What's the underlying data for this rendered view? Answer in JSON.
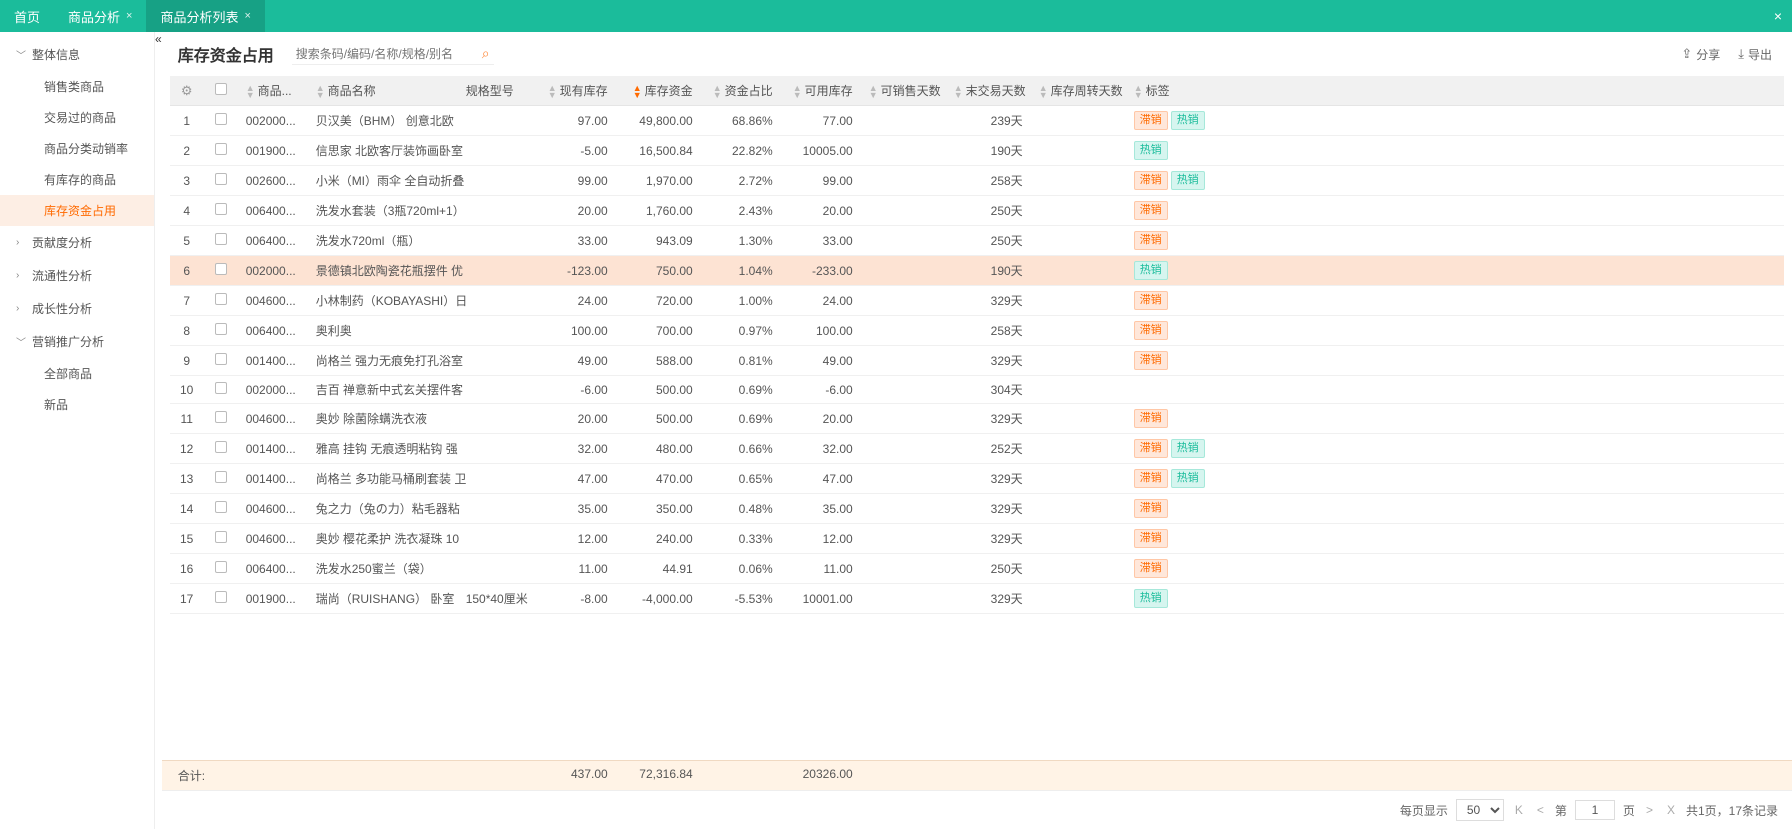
{
  "tabs": [
    {
      "label": "首页",
      "closable": false,
      "active": false
    },
    {
      "label": "商品分析",
      "closable": true,
      "active": false
    },
    {
      "label": "商品分析列表",
      "closable": true,
      "active": true
    }
  ],
  "sidebar": {
    "groups": [
      {
        "label": "整体信息",
        "expanded": true,
        "items": [
          {
            "label": "销售类商品"
          },
          {
            "label": "交易过的商品"
          },
          {
            "label": "商品分类动销率"
          },
          {
            "label": "有库存的商品"
          },
          {
            "label": "库存资金占用",
            "active": true
          }
        ]
      },
      {
        "label": "贡献度分析",
        "expanded": false,
        "items": []
      },
      {
        "label": "流通性分析",
        "expanded": false,
        "items": []
      },
      {
        "label": "成长性分析",
        "expanded": false,
        "items": []
      },
      {
        "label": "营销推广分析",
        "expanded": true,
        "items": [
          {
            "label": "全部商品"
          },
          {
            "label": "新品"
          }
        ]
      }
    ]
  },
  "page": {
    "title": "库存资金占用",
    "search_placeholder": "搜索条码/编码/名称/规格/别名",
    "share_label": "分享",
    "export_label": "导出"
  },
  "columns": [
    {
      "key": "gear",
      "label": "",
      "w": 34,
      "align": "center"
    },
    {
      "key": "chk",
      "label": "",
      "w": 34,
      "align": "center"
    },
    {
      "key": "code",
      "label": "商品...",
      "w": 70,
      "sort": true
    },
    {
      "key": "name",
      "label": "商品名称",
      "w": 150,
      "sort": true
    },
    {
      "key": "spec",
      "label": "规格型号",
      "w": 78
    },
    {
      "key": "stock",
      "label": "现有库存",
      "w": 80,
      "align": "num",
      "sort": true
    },
    {
      "key": "fund",
      "label": "库存资金",
      "w": 85,
      "align": "num",
      "sort": true,
      "sorted": "desc"
    },
    {
      "key": "ratio",
      "label": "资金占比",
      "w": 80,
      "align": "num",
      "sort": true
    },
    {
      "key": "avail",
      "label": "可用库存",
      "w": 80,
      "align": "num",
      "sort": true
    },
    {
      "key": "saledays",
      "label": "可销售天数",
      "w": 85,
      "align": "num",
      "sort": true
    },
    {
      "key": "lastdeal",
      "label": "末交易天数",
      "w": 85,
      "align": "num",
      "sort": true
    },
    {
      "key": "turndays",
      "label": "库存周转天数",
      "w": 95,
      "align": "num",
      "sort": true
    },
    {
      "key": "tags",
      "label": "标签",
      "w": 110,
      "sort": true
    }
  ],
  "rows": [
    {
      "idx": 1,
      "code": "002000...",
      "name": "贝汉美（BHM） 创意北欧",
      "spec": "",
      "stock": "97.00",
      "fund": "49,800.00",
      "ratio": "68.86%",
      "avail": "77.00",
      "saledays": "",
      "lastdeal": "239天",
      "turndays": "",
      "tags": [
        "滞销",
        "热销"
      ]
    },
    {
      "idx": 2,
      "code": "001900...",
      "name": "信思家 北欧客厅装饰画卧室",
      "spec": "",
      "stock": "-5.00",
      "fund": "16,500.84",
      "ratio": "22.82%",
      "avail": "10005.00",
      "saledays": "",
      "lastdeal": "190天",
      "turndays": "",
      "tags": [
        "热销"
      ]
    },
    {
      "idx": 3,
      "code": "002600...",
      "name": "小米（MI）雨伞 全自动折叠",
      "spec": "",
      "stock": "99.00",
      "fund": "1,970.00",
      "ratio": "2.72%",
      "avail": "99.00",
      "saledays": "",
      "lastdeal": "258天",
      "turndays": "",
      "tags": [
        "滞销",
        "热销"
      ]
    },
    {
      "idx": 4,
      "code": "006400...",
      "name": "洗发水套装（3瓶720ml+1）",
      "spec": "",
      "stock": "20.00",
      "fund": "1,760.00",
      "ratio": "2.43%",
      "avail": "20.00",
      "saledays": "",
      "lastdeal": "250天",
      "turndays": "",
      "tags": [
        "滞销"
      ]
    },
    {
      "idx": 5,
      "code": "006400...",
      "name": "洗发水720ml（瓶）",
      "spec": "",
      "stock": "33.00",
      "fund": "943.09",
      "ratio": "1.30%",
      "avail": "33.00",
      "saledays": "",
      "lastdeal": "250天",
      "turndays": "",
      "tags": [
        "滞销"
      ]
    },
    {
      "idx": 6,
      "code": "002000...",
      "name": "景德镇北欧陶瓷花瓶摆件 优",
      "spec": "",
      "stock": "-123.00",
      "fund": "750.00",
      "ratio": "1.04%",
      "avail": "-233.00",
      "saledays": "",
      "lastdeal": "190天",
      "turndays": "",
      "tags": [
        "热销"
      ],
      "hl": true
    },
    {
      "idx": 7,
      "code": "004600...",
      "name": "小林制药（KOBAYASHI）日",
      "spec": "",
      "stock": "24.00",
      "fund": "720.00",
      "ratio": "1.00%",
      "avail": "24.00",
      "saledays": "",
      "lastdeal": "329天",
      "turndays": "",
      "tags": [
        "滞销"
      ]
    },
    {
      "idx": 8,
      "code": "006400...",
      "name": "奥利奥",
      "spec": "",
      "stock": "100.00",
      "fund": "700.00",
      "ratio": "0.97%",
      "avail": "100.00",
      "saledays": "",
      "lastdeal": "258天",
      "turndays": "",
      "tags": [
        "滞销"
      ]
    },
    {
      "idx": 9,
      "code": "001400...",
      "name": "尚格兰 强力无痕免打孔浴室",
      "spec": "",
      "stock": "49.00",
      "fund": "588.00",
      "ratio": "0.81%",
      "avail": "49.00",
      "saledays": "",
      "lastdeal": "329天",
      "turndays": "",
      "tags": [
        "滞销"
      ]
    },
    {
      "idx": 10,
      "code": "002000...",
      "name": "吉百 禅意新中式玄关摆件客",
      "spec": "",
      "stock": "-6.00",
      "fund": "500.00",
      "ratio": "0.69%",
      "avail": "-6.00",
      "saledays": "",
      "lastdeal": "304天",
      "turndays": "",
      "tags": []
    },
    {
      "idx": 11,
      "code": "004600...",
      "name": "奥妙 除菌除螨洗衣液",
      "spec": "",
      "stock": "20.00",
      "fund": "500.00",
      "ratio": "0.69%",
      "avail": "20.00",
      "saledays": "",
      "lastdeal": "329天",
      "turndays": "",
      "tags": [
        "滞销"
      ]
    },
    {
      "idx": 12,
      "code": "001400...",
      "name": "雅高 挂钩 无痕透明粘钩 强",
      "spec": "",
      "stock": "32.00",
      "fund": "480.00",
      "ratio": "0.66%",
      "avail": "32.00",
      "saledays": "",
      "lastdeal": "252天",
      "turndays": "",
      "tags": [
        "滞销",
        "热销"
      ]
    },
    {
      "idx": 13,
      "code": "001400...",
      "name": "尚格兰 多功能马桶刷套装 卫",
      "spec": "",
      "stock": "47.00",
      "fund": "470.00",
      "ratio": "0.65%",
      "avail": "47.00",
      "saledays": "",
      "lastdeal": "329天",
      "turndays": "",
      "tags": [
        "滞销",
        "热销"
      ]
    },
    {
      "idx": 14,
      "code": "004600...",
      "name": "兔之力（兔の力）粘毛器粘",
      "spec": "",
      "stock": "35.00",
      "fund": "350.00",
      "ratio": "0.48%",
      "avail": "35.00",
      "saledays": "",
      "lastdeal": "329天",
      "turndays": "",
      "tags": [
        "滞销"
      ]
    },
    {
      "idx": 15,
      "code": "004600...",
      "name": "奥妙 樱花柔护 洗衣凝珠 10",
      "spec": "",
      "stock": "12.00",
      "fund": "240.00",
      "ratio": "0.33%",
      "avail": "12.00",
      "saledays": "",
      "lastdeal": "329天",
      "turndays": "",
      "tags": [
        "滞销"
      ]
    },
    {
      "idx": 16,
      "code": "006400...",
      "name": "洗发水250蜜兰（袋）",
      "spec": "",
      "stock": "11.00",
      "fund": "44.91",
      "ratio": "0.06%",
      "avail": "11.00",
      "saledays": "",
      "lastdeal": "250天",
      "turndays": "",
      "tags": [
        "滞销"
      ]
    },
    {
      "idx": 17,
      "code": "001900...",
      "name": "瑞尚（RUISHANG） 卧室",
      "spec": "150*40厘米",
      "stock": "-8.00",
      "fund": "-4,000.00",
      "ratio": "-5.53%",
      "avail": "10001.00",
      "saledays": "",
      "lastdeal": "329天",
      "turndays": "",
      "tags": [
        "热销"
      ]
    }
  ],
  "summary": {
    "label": "合计:",
    "stock": "437.00",
    "fund": "72,316.84",
    "avail": "20326.00"
  },
  "pager": {
    "perpage_label": "每页显示",
    "perpage_value": "50",
    "first": "K",
    "prev": "<",
    "page_prefix": "第",
    "page_value": "1",
    "page_suffix": "页",
    "next": ">",
    "last": "X",
    "total_text": "共1页，17条记录"
  },
  "tag_styles": {
    "滞销": "orange",
    "热销": "teal"
  }
}
